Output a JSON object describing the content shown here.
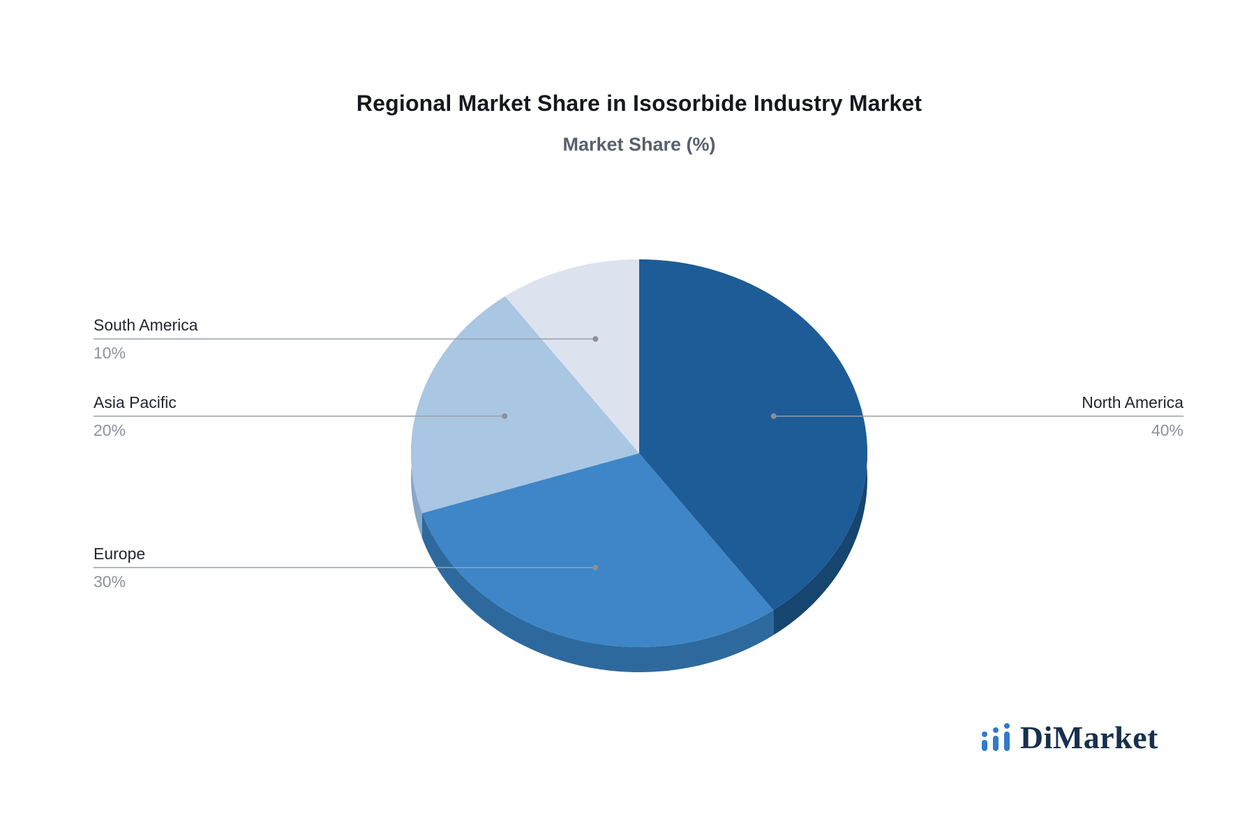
{
  "chart_data": {
    "type": "pie",
    "title": "Regional Market Share in Isosorbide Industry Market",
    "subtitle": "Market Share (%)",
    "unit": "percent",
    "direction": "clockwise",
    "start_angle_deg": 0,
    "style": "3d-pie",
    "legend_position": "callout-labels",
    "slices": [
      {
        "label": "North America",
        "value": 40,
        "value_label": "40%",
        "color": "#1E5C98",
        "side_color": "#16456F"
      },
      {
        "label": "Europe",
        "value": 30,
        "value_label": "30%",
        "color": "#3E86C7",
        "side_color": "#2E699E"
      },
      {
        "label": "Asia Pacific",
        "value": 20,
        "value_label": "20%",
        "color": "#A9C6E2",
        "side_color": "#88A8C6"
      },
      {
        "label": "South America",
        "value": 10,
        "value_label": "10%",
        "color": "#DCE3EE",
        "side_color": "#B9C3D2"
      }
    ]
  },
  "branding": {
    "logo_text": "DiMarket",
    "logo_icon": "bar-chart-icon",
    "logo_text_color": "#17304E",
    "logo_icon_color": "#2E7BCE"
  },
  "colors": {
    "background": "#FFFFFF",
    "title": "#15181D",
    "subtitle": "#57606D",
    "label_text": "#21262E",
    "value_text": "#8D929B",
    "leader_line": "#9AA0A6",
    "leader_dot": "#8A8F98"
  }
}
